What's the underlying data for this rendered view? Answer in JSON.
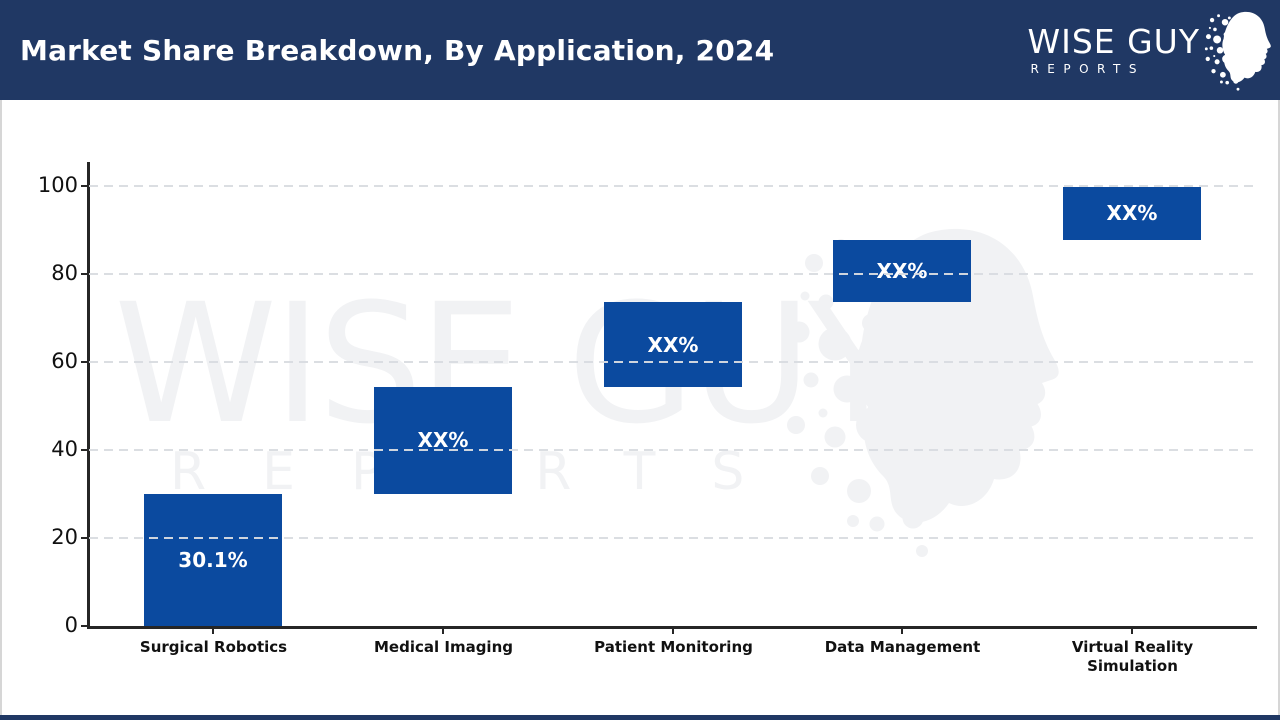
{
  "header": {
    "title": "Market Share Breakdown, By Application, 2024",
    "logo": {
      "line1": "WISE GUY",
      "line2": "REPORTS"
    }
  },
  "watermark": {
    "line1": "WISE GUY",
    "line2": "REPORTS"
  },
  "chart_data": {
    "type": "bar",
    "subtype": "waterfall",
    "title": "Market Share Breakdown, By Application, 2024",
    "categories": [
      "Surgical Robotics",
      "Medical Imaging",
      "Patient Monitoring",
      "Data Management",
      "Virtual Reality Simulation"
    ],
    "segments": [
      {
        "category": "Surgical Robotics",
        "start": 0,
        "end": 30.1,
        "label": "30.1%"
      },
      {
        "category": "Medical Imaging",
        "start": 30.1,
        "end": 54.3,
        "label": "XX%"
      },
      {
        "category": "Patient Monitoring",
        "start": 54.3,
        "end": 73.6,
        "label": "XX%"
      },
      {
        "category": "Data Management",
        "start": 73.6,
        "end": 87.7,
        "label": "XX%"
      },
      {
        "category": "Virtual Reality Simulation",
        "start": 87.7,
        "end": 99.8,
        "label": "XX%"
      }
    ],
    "ylim": [
      0,
      100
    ],
    "yticks": [
      0,
      20,
      40,
      60,
      80,
      100
    ],
    "ytick_labels": [
      "0",
      "20",
      "40",
      "60",
      "80",
      "100"
    ],
    "grid": "horizontal-dashed",
    "legend": false,
    "xlabel": "",
    "ylabel": ""
  },
  "colors": {
    "header_bg": "#203864",
    "bar": "#0b4a9f",
    "bar_label": "#ffffff",
    "grid": "#d9dce1",
    "axis": "#262626",
    "watermark": "#f1f2f4"
  }
}
